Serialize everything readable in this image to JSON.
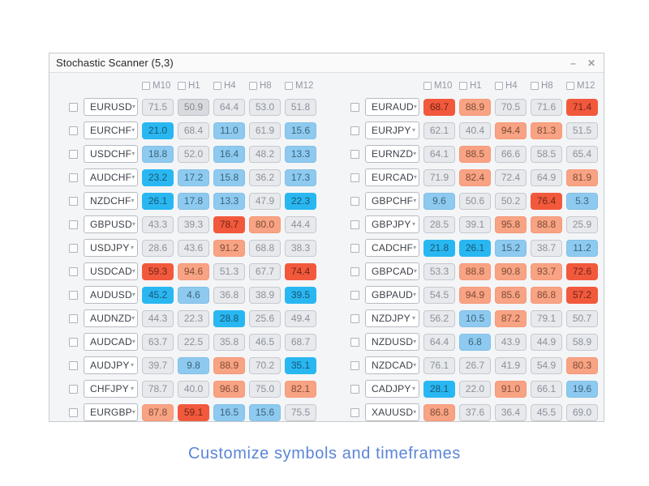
{
  "window": {
    "title": "Stochastic Scanner (5,3)",
    "controls": {
      "minimize": "–",
      "close": "✕"
    }
  },
  "timeframes": [
    "M10",
    "H1",
    "H4",
    "H8",
    "M12"
  ],
  "colors": {
    "cell_gray": "#e7e9ec",
    "cell_gray_dark": "#d8dade",
    "cell_blue_light": "#8ecaef",
    "cell_blue_bright": "#29b7f1",
    "cell_red_light": "#f8a383",
    "cell_red_bright": "#f2593c",
    "caption_blue": "#5b85d8"
  },
  "panels": [
    {
      "rows": [
        {
          "symbol": "EURUSD",
          "values": [
            "71.5",
            "50.9",
            "64.4",
            "53.0",
            "51.8"
          ],
          "levels": [
            "gray",
            "gray-dark",
            "gray",
            "gray",
            "gray"
          ]
        },
        {
          "symbol": "EURCHF",
          "values": [
            "21.0",
            "68.4",
            "11.0",
            "61.9",
            "15.6"
          ],
          "levels": [
            "blue-bright",
            "gray",
            "blue",
            "gray",
            "blue"
          ]
        },
        {
          "symbol": "USDCHF",
          "values": [
            "18.8",
            "52.0",
            "16.4",
            "48.2",
            "13.3"
          ],
          "levels": [
            "blue",
            "gray",
            "blue",
            "gray",
            "blue"
          ]
        },
        {
          "symbol": "AUDCHF",
          "values": [
            "23.2",
            "17.2",
            "15.8",
            "36.2",
            "17.3"
          ],
          "levels": [
            "blue-bright",
            "blue",
            "blue",
            "gray",
            "blue"
          ]
        },
        {
          "symbol": "NZDCHF",
          "values": [
            "26.1",
            "17.8",
            "13.3",
            "47.9",
            "22.3"
          ],
          "levels": [
            "blue-bright",
            "blue",
            "blue",
            "gray",
            "blue-bright"
          ]
        },
        {
          "symbol": "GBPUSD",
          "values": [
            "43.3",
            "39.3",
            "78.7",
            "80.0",
            "44.4"
          ],
          "levels": [
            "gray",
            "gray",
            "red-bright",
            "red",
            "gray"
          ]
        },
        {
          "symbol": "USDJPY",
          "values": [
            "28.6",
            "43.6",
            "91.2",
            "68.8",
            "38.3"
          ],
          "levels": [
            "gray",
            "gray",
            "red",
            "gray",
            "gray"
          ]
        },
        {
          "symbol": "USDCAD",
          "values": [
            "59.3",
            "94.6",
            "51.3",
            "67.7",
            "74.4"
          ],
          "levels": [
            "red-bright",
            "red",
            "gray",
            "gray",
            "red-bright"
          ]
        },
        {
          "symbol": "AUDUSD",
          "values": [
            "45.2",
            "4.6",
            "36.8",
            "38.9",
            "39.5"
          ],
          "levels": [
            "blue-bright",
            "blue",
            "gray",
            "gray",
            "blue-bright"
          ]
        },
        {
          "symbol": "AUDNZD",
          "values": [
            "44.3",
            "22.3",
            "28.8",
            "25.6",
            "49.4"
          ],
          "levels": [
            "gray",
            "gray",
            "blue-bright",
            "gray",
            "gray"
          ]
        },
        {
          "symbol": "AUDCAD",
          "values": [
            "63.7",
            "22.5",
            "35.8",
            "46.5",
            "68.7"
          ],
          "levels": [
            "gray",
            "gray",
            "gray",
            "gray",
            "gray"
          ]
        },
        {
          "symbol": "AUDJPY",
          "values": [
            "39.7",
            "9.8",
            "88.9",
            "70.2",
            "35.1"
          ],
          "levels": [
            "gray",
            "blue",
            "red",
            "gray",
            "blue-bright"
          ]
        },
        {
          "symbol": "CHFJPY",
          "values": [
            "78.7",
            "40.0",
            "96.8",
            "75.0",
            "82.1"
          ],
          "levels": [
            "gray",
            "gray",
            "red",
            "gray",
            "red"
          ]
        },
        {
          "symbol": "EURGBP",
          "values": [
            "87.8",
            "59.1",
            "16.5",
            "15.6",
            "75.5"
          ],
          "levels": [
            "red",
            "red-bright",
            "blue",
            "blue",
            "gray"
          ]
        }
      ]
    },
    {
      "rows": [
        {
          "symbol": "EURAUD",
          "values": [
            "68.7",
            "88.9",
            "70.5",
            "71.6",
            "71.4"
          ],
          "levels": [
            "red-bright",
            "red",
            "gray",
            "gray",
            "red-bright"
          ]
        },
        {
          "symbol": "EURJPY",
          "values": [
            "62.1",
            "40.4",
            "94.4",
            "81.3",
            "51.5"
          ],
          "levels": [
            "gray",
            "gray",
            "red",
            "red",
            "gray"
          ]
        },
        {
          "symbol": "EURNZD",
          "values": [
            "64.1",
            "88.5",
            "66.6",
            "58.5",
            "65.4"
          ],
          "levels": [
            "gray",
            "red",
            "gray",
            "gray",
            "gray"
          ]
        },
        {
          "symbol": "EURCAD",
          "values": [
            "71.9",
            "82.4",
            "72.4",
            "64.9",
            "81.9"
          ],
          "levels": [
            "gray",
            "red",
            "gray",
            "gray",
            "red"
          ]
        },
        {
          "symbol": "GBPCHF",
          "values": [
            "9.6",
            "50.6",
            "50.2",
            "76.4",
            "5.3"
          ],
          "levels": [
            "blue",
            "gray",
            "gray",
            "red-bright",
            "blue"
          ]
        },
        {
          "symbol": "GBPJPY",
          "values": [
            "28.5",
            "39.1",
            "95.8",
            "88.8",
            "25.9"
          ],
          "levels": [
            "gray",
            "gray",
            "red",
            "red",
            "gray"
          ]
        },
        {
          "symbol": "CADCHF",
          "values": [
            "21.8",
            "26.1",
            "15.2",
            "38.7",
            "11.2"
          ],
          "levels": [
            "blue-bright",
            "blue-bright",
            "blue",
            "gray",
            "blue"
          ]
        },
        {
          "symbol": "GBPCAD",
          "values": [
            "53.3",
            "88.8",
            "90.8",
            "93.7",
            "72.6"
          ],
          "levels": [
            "gray",
            "red",
            "red",
            "red",
            "red-bright"
          ]
        },
        {
          "symbol": "GBPAUD",
          "values": [
            "54.5",
            "94.9",
            "85.6",
            "86.8",
            "57.2"
          ],
          "levels": [
            "gray",
            "red",
            "red",
            "red",
            "red-bright"
          ]
        },
        {
          "symbol": "NZDJPY",
          "values": [
            "56.2",
            "10.5",
            "87.2",
            "79.1",
            "50.7"
          ],
          "levels": [
            "gray",
            "blue",
            "red",
            "gray",
            "gray"
          ]
        },
        {
          "symbol": "NZDUSD",
          "values": [
            "64.4",
            "6.8",
            "43.9",
            "44.9",
            "58.9"
          ],
          "levels": [
            "gray",
            "blue",
            "gray",
            "gray",
            "gray"
          ]
        },
        {
          "symbol": "NZDCAD",
          "values": [
            "76.1",
            "26.7",
            "41.9",
            "54.9",
            "80.3"
          ],
          "levels": [
            "gray",
            "gray",
            "gray",
            "gray",
            "red"
          ]
        },
        {
          "symbol": "CADJPY",
          "values": [
            "28.1",
            "22.0",
            "91.0",
            "66.1",
            "19.6"
          ],
          "levels": [
            "blue-bright",
            "gray",
            "red",
            "gray",
            "blue"
          ]
        },
        {
          "symbol": "XAUUSD",
          "values": [
            "86.8",
            "37.6",
            "36.4",
            "45.5",
            "69.0"
          ],
          "levels": [
            "red",
            "gray",
            "gray",
            "gray",
            "gray"
          ]
        }
      ]
    }
  ],
  "caption": {
    "text": "Customize symbols and timeframes"
  }
}
